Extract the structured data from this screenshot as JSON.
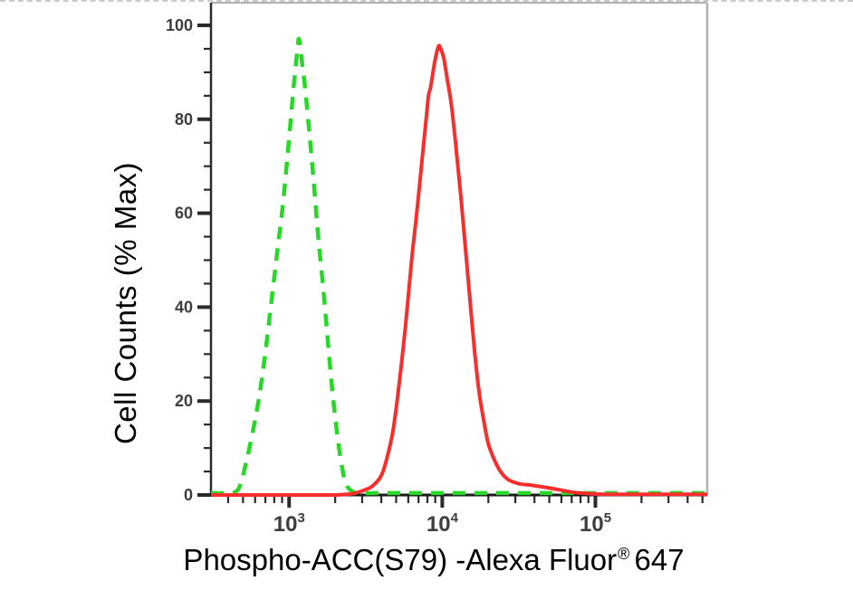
{
  "page": {
    "background": "#ffffff"
  },
  "chart_data": {
    "type": "line",
    "chart_kind": "flow-cytometry-histogram-overlay",
    "title": "",
    "xlabel": {
      "main": "Phospho-ACC(S79) -Alexa Fluor",
      "registered_mark": "®",
      "suffix": "647",
      "full": "Phospho-ACC(S79) -Alexa Fluor®647"
    },
    "ylabel": "Cell Counts (% Max)",
    "x_axis": {
      "scale": "log10",
      "lim_log10": [
        2.49,
        5.73
      ],
      "major_ticks": [
        {
          "value": 1000,
          "label_base": "10",
          "label_exp": "3"
        },
        {
          "value": 10000,
          "label_base": "10",
          "label_exp": "4"
        },
        {
          "value": 100000,
          "label_base": "10",
          "label_exp": "5"
        }
      ],
      "minor_tick_multiples": [
        2,
        3,
        4,
        5,
        6,
        7,
        8,
        9
      ]
    },
    "y_axis": {
      "lim": [
        0,
        100
      ],
      "major_ticks": [
        0,
        20,
        40,
        60,
        80,
        100
      ],
      "minor_tick_step": 5
    },
    "grid": false,
    "legend": "none",
    "colors": {
      "axis": "#2b2b2b",
      "frame": "#b0b0b0",
      "tick_label": "#3d3d3d",
      "title": "#000000",
      "page_edge_dashes": "#c9c9c9",
      "green_series": "#28d828",
      "red_series": "#fa2d2d"
    },
    "series": [
      {
        "name": "green-dashed-histogram",
        "line_style": "dashed",
        "color": "#28d828",
        "points_log10x_pctmax": [
          [
            2.49,
            0.4
          ],
          [
            2.58,
            0.4
          ],
          [
            2.64,
            0.5
          ],
          [
            2.68,
            2
          ],
          [
            2.72,
            7
          ],
          [
            2.76,
            13
          ],
          [
            2.8,
            20
          ],
          [
            2.84,
            29
          ],
          [
            2.88,
            40
          ],
          [
            2.92,
            51
          ],
          [
            2.96,
            62
          ],
          [
            3.0,
            76
          ],
          [
            3.03,
            87
          ],
          [
            3.055,
            95
          ],
          [
            3.065,
            97
          ],
          [
            3.085,
            92
          ],
          [
            3.1,
            88
          ],
          [
            3.13,
            78
          ],
          [
            3.16,
            67
          ],
          [
            3.19,
            55
          ],
          [
            3.22,
            45
          ],
          [
            3.25,
            34
          ],
          [
            3.28,
            23
          ],
          [
            3.31,
            14
          ],
          [
            3.34,
            7
          ],
          [
            3.37,
            2.5
          ],
          [
            3.41,
            0.8
          ],
          [
            3.46,
            0.4
          ],
          [
            3.6,
            0.4
          ],
          [
            3.8,
            0.4
          ],
          [
            4.0,
            0.4
          ],
          [
            4.2,
            0.4
          ],
          [
            4.4,
            0.4
          ],
          [
            4.6,
            0.4
          ],
          [
            4.8,
            0.4
          ],
          [
            5.0,
            0.4
          ],
          [
            5.2,
            0.4
          ],
          [
            5.4,
            0.4
          ],
          [
            5.6,
            0.4
          ],
          [
            5.73,
            0.4
          ]
        ]
      },
      {
        "name": "red-solid-histogram",
        "line_style": "solid",
        "color": "#fa2d2d",
        "points_log10x_pctmax": [
          [
            2.49,
            0
          ],
          [
            2.8,
            0
          ],
          [
            3.1,
            0
          ],
          [
            3.3,
            0
          ],
          [
            3.36,
            0.1
          ],
          [
            3.42,
            0.3
          ],
          [
            3.48,
            0.9
          ],
          [
            3.54,
            1.8
          ],
          [
            3.6,
            4
          ],
          [
            3.64,
            8
          ],
          [
            3.68,
            14
          ],
          [
            3.72,
            24
          ],
          [
            3.76,
            36
          ],
          [
            3.8,
            50
          ],
          [
            3.84,
            62
          ],
          [
            3.87,
            72
          ],
          [
            3.895,
            80
          ],
          [
            3.91,
            85
          ],
          [
            3.925,
            87
          ],
          [
            3.95,
            92
          ],
          [
            3.975,
            95.5
          ],
          [
            3.99,
            95
          ],
          [
            4.01,
            93
          ],
          [
            4.03,
            89
          ],
          [
            4.06,
            83
          ],
          [
            4.09,
            74
          ],
          [
            4.12,
            64
          ],
          [
            4.15,
            53
          ],
          [
            4.18,
            42
          ],
          [
            4.21,
            31
          ],
          [
            4.24,
            22
          ],
          [
            4.27,
            16
          ],
          [
            4.3,
            11
          ],
          [
            4.34,
            7.5
          ],
          [
            4.38,
            5
          ],
          [
            4.43,
            3.3
          ],
          [
            4.5,
            2.4
          ],
          [
            4.58,
            2.1
          ],
          [
            4.66,
            1.7
          ],
          [
            4.75,
            1.2
          ],
          [
            4.85,
            0.6
          ],
          [
            4.95,
            0.3
          ],
          [
            5.05,
            0.15
          ],
          [
            5.2,
            0.15
          ],
          [
            5.4,
            0.15
          ],
          [
            5.6,
            0.15
          ],
          [
            5.73,
            0.15
          ]
        ]
      }
    ]
  }
}
